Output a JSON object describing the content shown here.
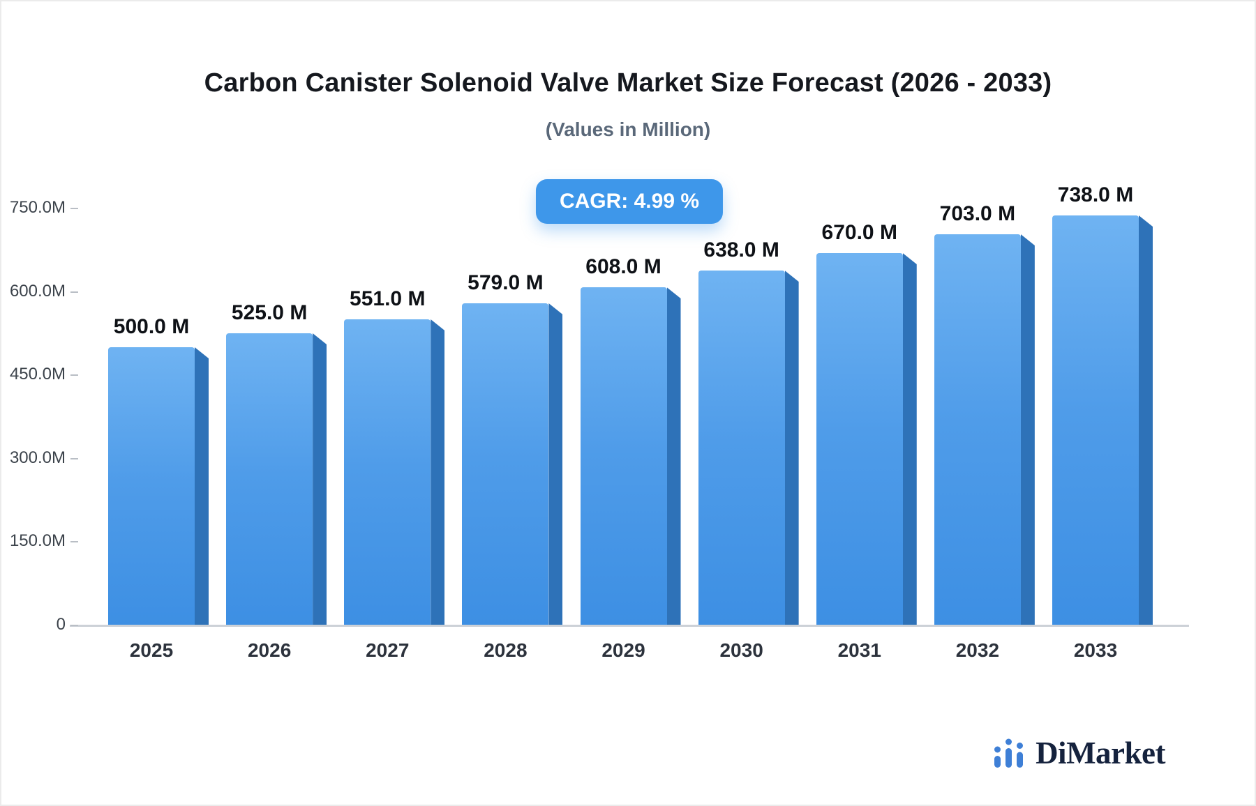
{
  "chart": {
    "title": "Carbon Canister Solenoid Valve Market Size Forecast (2026 - 2033)",
    "subtitle": "(Values in Million)",
    "cagr_label": "CAGR: 4.99 %"
  },
  "chart_data": {
    "type": "bar",
    "title": "Carbon Canister Solenoid Valve Market Size Forecast (2026 - 2033)",
    "subtitle": "(Values in Million)",
    "categories": [
      "2025",
      "2026",
      "2027",
      "2028",
      "2029",
      "2030",
      "2031",
      "2032",
      "2033"
    ],
    "values": [
      500.0,
      525.0,
      551.0,
      579.0,
      608.0,
      638.0,
      670.0,
      703.0,
      738.0
    ],
    "labels": [
      "500.0 M",
      "525.0 M",
      "551.0 M",
      "579.0 M",
      "608.0 M",
      "638.0 M",
      "670.0 M",
      "703.0 M",
      "738.0 M"
    ],
    "xlabel": "",
    "ylabel": "",
    "ylim": [
      0,
      750
    ],
    "ytick_labels": [
      "750.0M",
      "600.0M",
      "450.0M",
      "300.0M",
      "150.0M",
      "0"
    ],
    "ytick_values": [
      750,
      600,
      450,
      300,
      150,
      0
    ],
    "grid": false,
    "legend": false,
    "annotations": [
      "CAGR: 4.99 %"
    ],
    "colors": {
      "accent": "#3e97ea",
      "bar_top": "#6fb3f2",
      "bar_bottom": "#3d8fe3",
      "bar_side": "#2e72b8",
      "logo_color": "#3e7fd6"
    }
  },
  "footer": {
    "brand": "DiMarket"
  }
}
